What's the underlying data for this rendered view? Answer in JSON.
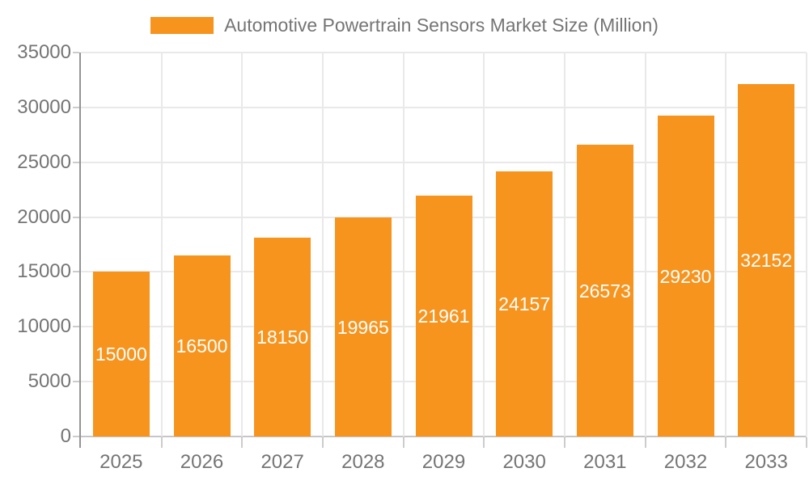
{
  "chart_data": {
    "type": "bar",
    "title": "Automotive Powertrain Sensors Market Size (Million)",
    "categories": [
      "2025",
      "2026",
      "2027",
      "2028",
      "2029",
      "2030",
      "2031",
      "2032",
      "2033"
    ],
    "series": [
      {
        "name": "Automotive Powertrain Sensors Market Size (Million)",
        "values": [
          15000,
          16500,
          18150,
          19965,
          21961,
          24157,
          26573,
          29230,
          32152
        ]
      }
    ],
    "xlabel": "",
    "ylabel": "",
    "ylim": [
      0,
      35000
    ],
    "ytick_step": 5000,
    "grid": true,
    "legend_position": "top",
    "value_labels": "inside-center"
  },
  "colors": {
    "bar": "#F7941E",
    "value_label": "#FFFFFF",
    "grid": "#E9E9E9",
    "axis_line": "#949494",
    "baseline": "#C6C6C6",
    "tick": "#CCCCCC",
    "text": "#757575"
  }
}
